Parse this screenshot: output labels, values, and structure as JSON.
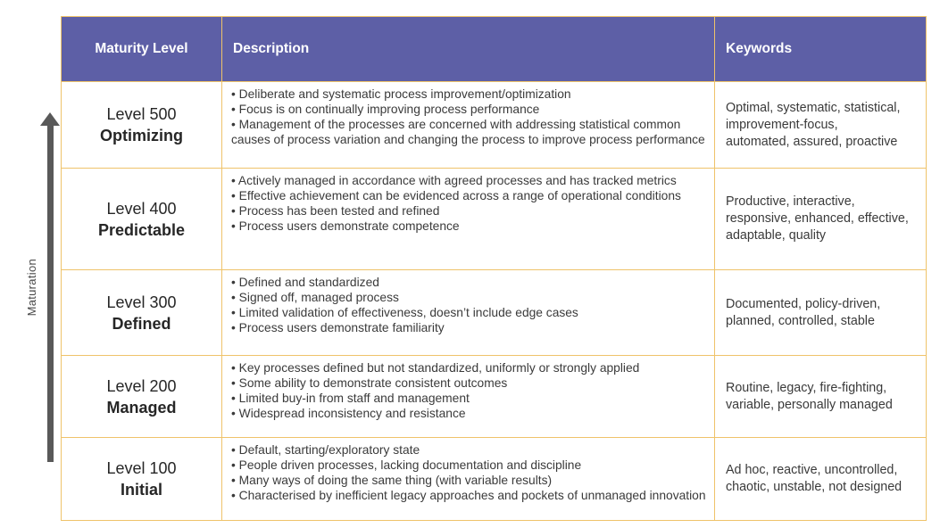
{
  "axis": {
    "label": "Maturation"
  },
  "colors": {
    "header_bg": "#5D5FA6",
    "header_text": "#FFFFFF",
    "table_border": "#EFC36A",
    "arrow": "#595959",
    "body_text": "#3A3A3A"
  },
  "table": {
    "headers": {
      "maturity": "Maturity Level",
      "description": "Description",
      "keywords": "Keywords"
    },
    "rows": [
      {
        "level": "Level 500",
        "name": "Optimizing",
        "bullets": [
          "Deliberate and systematic process improvement/optimization",
          "Focus is on continually improving process performance",
          "Management of the processes are concerned with addressing statistical common causes of process variation and changing the process to improve process performance"
        ],
        "keywords_lines": [
          "Optimal, systematic, statistical,",
          "improvement-focus,",
          "automated, assured, proactive"
        ]
      },
      {
        "level": "Level 400",
        "name": "Predictable",
        "bullets": [
          "Actively managed in accordance with agreed processes and has tracked metrics",
          "Effective achievement can be evidenced across a range of operational conditions",
          "Process has been tested and refined",
          "Process users demonstrate competence"
        ],
        "keywords_lines": [
          "Productive, interactive,",
          "responsive, enhanced, effective,",
          "adaptable, quality"
        ]
      },
      {
        "level": "Level 300",
        "name": "Defined",
        "bullets": [
          "Defined and standardized",
          "Signed off, managed process",
          "Limited validation of effectiveness, doesn’t include edge cases",
          "Process users demonstrate familiarity"
        ],
        "keywords_lines": [
          "Documented, policy-driven,",
          "planned, controlled, stable"
        ]
      },
      {
        "level": "Level 200",
        "name": "Managed",
        "bullets": [
          "Key processes defined but not standardized, uniformly or strongly applied",
          "Some ability to demonstrate consistent outcomes",
          "Limited buy-in from staff and management",
          "Widespread inconsistency and resistance"
        ],
        "keywords_lines": [
          "Routine, legacy, fire-fighting,",
          "variable, personally managed"
        ]
      },
      {
        "level": "Level 100",
        "name": "Initial",
        "bullets": [
          "Default, starting/exploratory state",
          "People driven processes, lacking documentation and discipline",
          "Many ways of doing the same thing (with variable results)",
          "Characterised by inefficient legacy approaches and pockets of unmanaged innovation"
        ],
        "keywords_lines": [
          "Ad hoc, reactive, uncontrolled,",
          "chaotic, unstable, not designed"
        ]
      }
    ]
  }
}
